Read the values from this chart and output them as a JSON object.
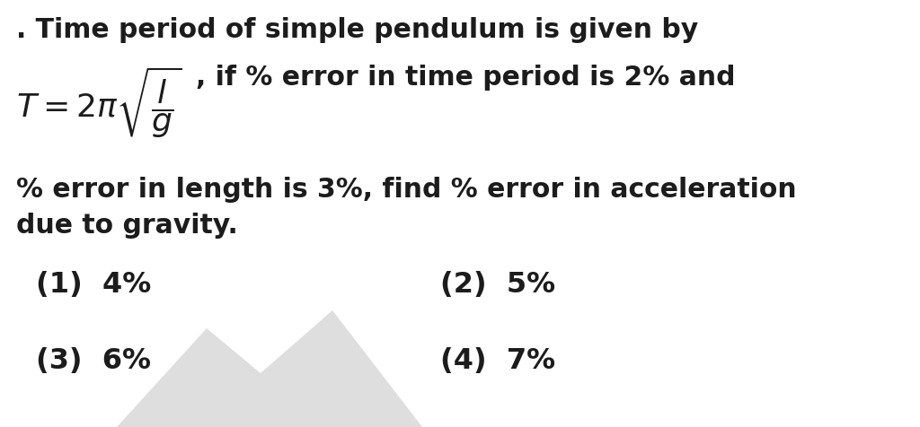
{
  "fig_bg": "#ffffff",
  "text_color": "#1c1c1c",
  "line1": ". Time period of simple pendulum is given by",
  "line3": ", if % error in time period is 2% and",
  "line4": "% error in length is 3%, find % error in acceleration",
  "line5": "due to gravity.",
  "opt1": "(1)  4%",
  "opt2": "(2)  5%",
  "opt3": "(3)  6%",
  "opt4": "(4)  7%",
  "font_size_main": 21.5,
  "font_size_formula": 26,
  "font_size_options": 23,
  "watermark_color": "#c8c8c8",
  "watermark_alpha": 0.6
}
